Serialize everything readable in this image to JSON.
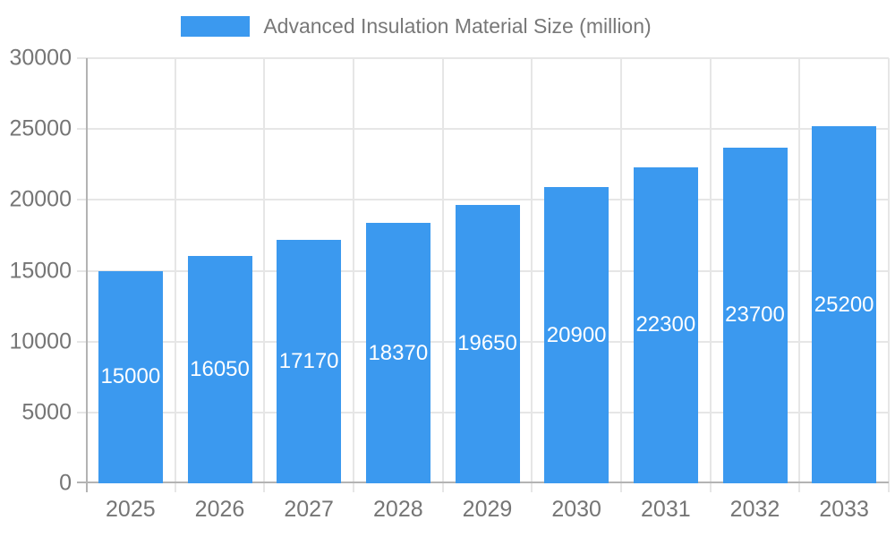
{
  "chart_data": {
    "type": "bar",
    "title": "Advanced Insulation Material Size (million)",
    "categories": [
      "2025",
      "2026",
      "2027",
      "2028",
      "2029",
      "2030",
      "2031",
      "2032",
      "2033"
    ],
    "series": [
      {
        "name": "Advanced Insulation Material Size (million)",
        "values": [
          15000,
          16050,
          17170,
          18370,
          19650,
          20900,
          22300,
          23700,
          25200
        ]
      }
    ],
    "values": [
      15000,
      16050,
      17170,
      18370,
      19650,
      20900,
      22300,
      23700,
      25200
    ],
    "data_labels": [
      "15000",
      "16050",
      "17170",
      "18370",
      "19650",
      "20900",
      "22300",
      "23700",
      "25200"
    ],
    "data_label_position": "inside-center",
    "xlabel": "",
    "ylabel": "",
    "ylim": [
      0,
      30000
    ],
    "y_ticks": [
      0,
      5000,
      10000,
      15000,
      20000,
      25000,
      30000
    ],
    "y_tick_labels": [
      "0",
      "5000",
      "10000",
      "15000",
      "20000",
      "25000",
      "30000"
    ],
    "grid": "on",
    "legend_position": "top-center",
    "colors": {
      "bar": "#3b99ef",
      "grid_line": "#e6e6e6",
      "axis_line": "#b3b3b3",
      "axis_text": "#757575",
      "legend_text": "#787878",
      "data_label_text": "#ffffff",
      "background": "#ffffff"
    }
  }
}
